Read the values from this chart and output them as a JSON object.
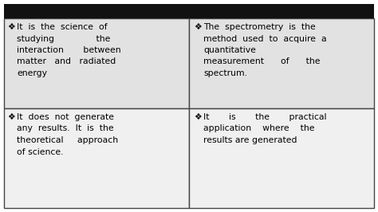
{
  "fig_width": 4.74,
  "fig_height": 2.66,
  "dpi": 100,
  "background_color": "#ffffff",
  "header_color": "#111111",
  "cell_bg_top": "#e2e2e2",
  "cell_bg_bottom": "#f0f0f0",
  "border_color": "#444444",
  "text_color": "#000000",
  "font_size": 7.8,
  "bullet": "❖",
  "top_left_lines": [
    "It  is  the  science  of",
    "studying               the",
    "interaction       between",
    "matter   and   radiated",
    "energy"
  ],
  "top_right_lines": [
    "The  spectrometry  is  the",
    "method  used  to  acquire  a",
    "quantitative",
    "measurement      of      the",
    "spectrum."
  ],
  "bottom_left_lines": [
    "It  does  not  generate",
    "any  results.  It  is  the",
    "theoretical     approach",
    "of science."
  ],
  "bottom_right_lines": [
    "It       is       the       practical",
    "application    where    the",
    "results are generated"
  ]
}
